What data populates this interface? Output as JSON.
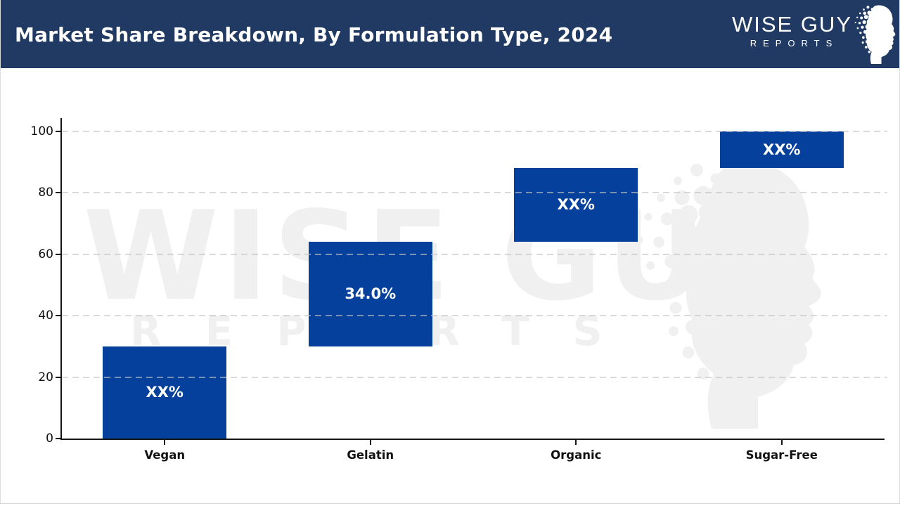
{
  "header": {
    "title": "Market Share Breakdown, By Formulation Type, 2024",
    "logo": {
      "name": "WISE GUY",
      "tagline": "REPORTS"
    }
  },
  "watermark": {
    "line1": "WISE GUY",
    "line2": "REPORTS"
  },
  "chart_data": {
    "type": "bar",
    "subtype": "floating-waterfall-bars",
    "title": "Market Share Breakdown, By Formulation Type, 2024",
    "categories": [
      "Vegan",
      "Gelatin",
      "Organic",
      "Sugar-Free"
    ],
    "segments": [
      {
        "category": "Vegan",
        "from": 0,
        "to": 30,
        "label": "XX%"
      },
      {
        "category": "Gelatin",
        "from": 30,
        "to": 64,
        "label": "34.0%"
      },
      {
        "category": "Organic",
        "from": 64,
        "to": 88,
        "label": "XX%"
      },
      {
        "category": "Sugar-Free",
        "from": 88,
        "to": 100,
        "label": "XX%"
      }
    ],
    "xlabel": "",
    "ylabel": "",
    "ylim": [
      0,
      100
    ],
    "yticks": [
      0,
      20,
      40,
      60,
      80,
      100
    ],
    "grid": "horizontal-dashed-over-bars",
    "legend": "none",
    "bar_color": "#05419c"
  },
  "colors": {
    "header_bg": "#213a64",
    "bar": "#05419c",
    "axis": "#151515",
    "gridline": "#d9d9d9",
    "watermark": "#f0f0f0",
    "bar_label_text": "#ffffff",
    "tick_text": "#111111",
    "title_text": "#ffffff"
  }
}
